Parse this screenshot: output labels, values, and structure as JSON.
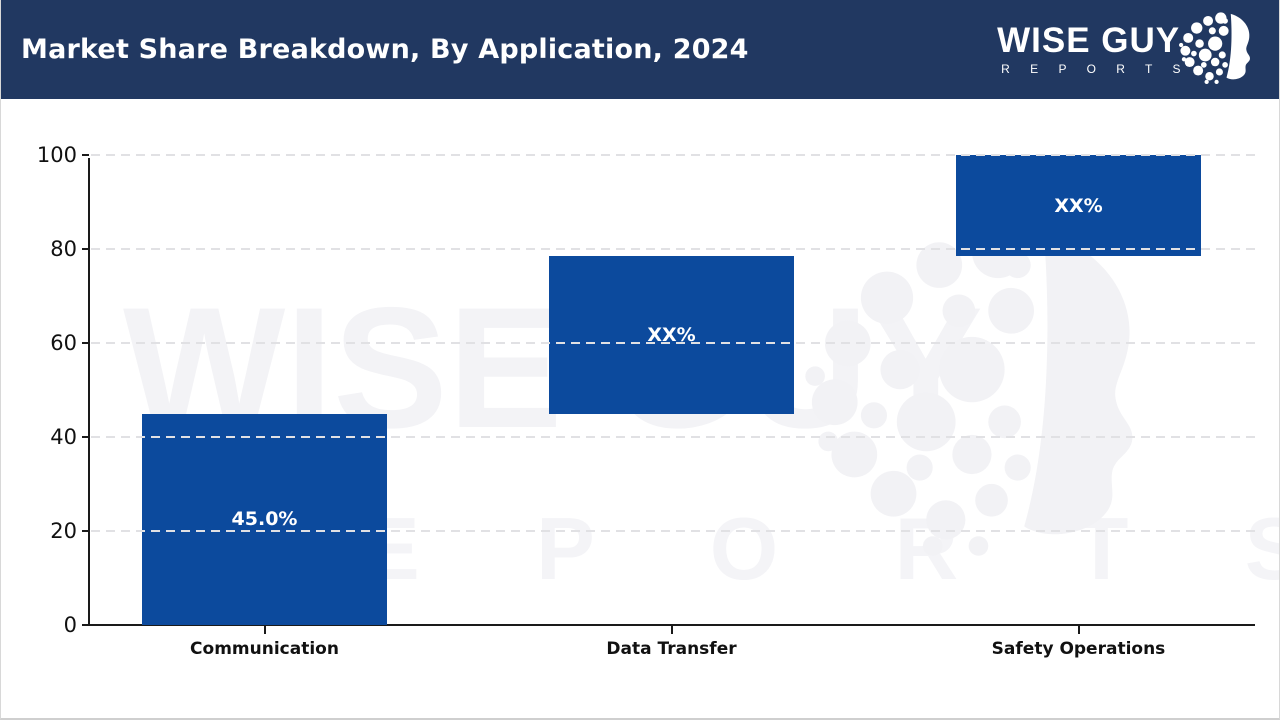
{
  "header": {
    "title": "Market Share Breakdown, By Application, 2024",
    "logo": {
      "line1": "WISE GUY",
      "line2": "R E P O R T S"
    },
    "bg_color": "#213861"
  },
  "watermark": {
    "line1": "WISE GUY",
    "line2": "R E P O R T S"
  },
  "chart_data": {
    "type": "bar",
    "subtype": "waterfall",
    "title": "Market Share Breakdown, By Application, 2024",
    "categories": [
      "Communication",
      "Data Transfer",
      "Safety Operations"
    ],
    "segments": [
      {
        "category": "Communication",
        "start": 0,
        "end": 45,
        "label": "45.0%"
      },
      {
        "category": "Data Transfer",
        "start": 45,
        "end": 78.5,
        "label": "XX%"
      },
      {
        "category": "Safety Operations",
        "start": 78.5,
        "end": 100,
        "label": "XX%"
      }
    ],
    "xlabel": "",
    "ylabel": "",
    "ylim": [
      0,
      100
    ],
    "yticks": [
      0,
      20,
      40,
      60,
      80,
      100
    ],
    "grid": "horizontal-dashed",
    "legend": "none",
    "bar_color": "#0c4a9d",
    "bar_label_color": "#ffffff",
    "axis_color": "#1a1a1a"
  }
}
